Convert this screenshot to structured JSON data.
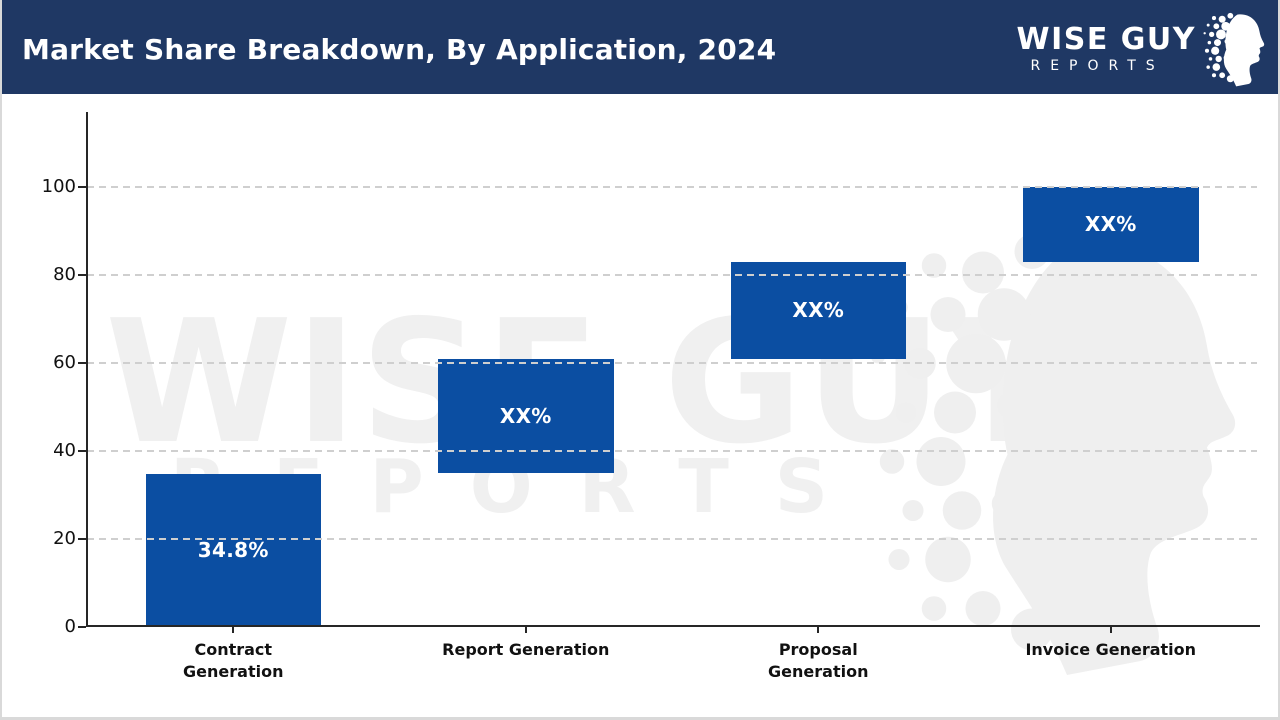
{
  "header": {
    "title": "Market Share Breakdown, By Application, 2024",
    "logo": {
      "line1": "WISE GUY",
      "line2": "REPORTS"
    }
  },
  "watermark": {
    "line1": "WISE GUY",
    "line2": "REPORTS"
  },
  "colors": {
    "header_bg": "#1F3864",
    "bar": "#0B4EA2",
    "bar_label": "#ffffff",
    "gridline": "#cfcfcf",
    "axis": "#262626",
    "tick_label": "#111111",
    "watermark": "#f0f0f0",
    "page_border": "#d9d9d9"
  },
  "chart_data": {
    "type": "bar",
    "subtype": "floating-waterfall",
    "title": "Market Share Breakdown, By Application, 2024",
    "categories": [
      "Contract\nGeneration",
      "Report Generation",
      "Proposal\nGeneration",
      "Invoice Generation"
    ],
    "bars": [
      {
        "category": "Contract Generation",
        "from": 0,
        "to": 34.8,
        "label": "34.8%"
      },
      {
        "category": "Report Generation",
        "from": 35,
        "to": 61,
        "label": "XX%"
      },
      {
        "category": "Proposal Generation",
        "from": 61,
        "to": 83,
        "label": "XX%"
      },
      {
        "category": "Invoice Generation",
        "from": 83,
        "to": 100,
        "label": "XX%"
      }
    ],
    "xlabel": "",
    "ylabel": "",
    "ylim": [
      0,
      100
    ],
    "yticks": [
      0,
      20,
      40,
      60,
      80,
      100
    ],
    "grid": "horizontal-dashed",
    "legend": null
  }
}
